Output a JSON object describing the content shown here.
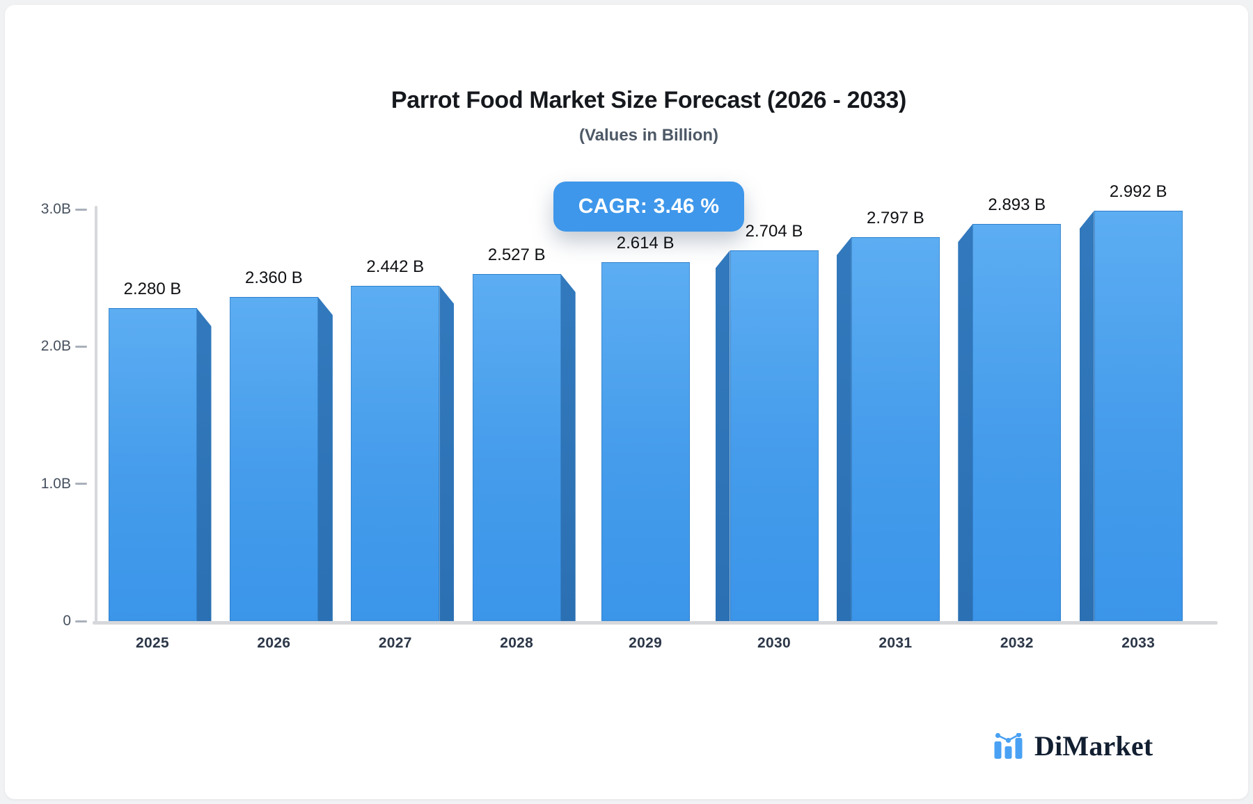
{
  "title": "Parrot Food Market Size Forecast (2026 - 2033)",
  "subtitle": "(Values in Billion)",
  "badge": {
    "label": "CAGR: 3.46 %"
  },
  "brand": {
    "name": "DiMarket"
  },
  "chart_data": {
    "type": "bar",
    "title": "Parrot Food Market Size Forecast (2026 - 2033)",
    "subtitle": "(Values in Billion)",
    "cagr_percent": 3.46,
    "categories": [
      "2025",
      "2026",
      "2027",
      "2028",
      "2029",
      "2030",
      "2031",
      "2032",
      "2033"
    ],
    "values": [
      2.28,
      2.36,
      2.442,
      2.527,
      2.614,
      2.704,
      2.797,
      2.893,
      2.992
    ],
    "value_labels": [
      "2.280 B",
      "2.360 B",
      "2.442 B",
      "2.527 B",
      "2.614 B",
      "2.704 B",
      "2.797 B",
      "2.893 B",
      "2.992 B"
    ],
    "xlabel": "",
    "ylabel": "",
    "ylim": [
      0,
      3.0
    ],
    "yticks": [
      {
        "label": "3.0B",
        "value": 3.0
      },
      {
        "label": "2.0B",
        "value": 2.0
      },
      {
        "label": "1.0B",
        "value": 1.0
      },
      {
        "label": "0",
        "value": 0
      }
    ],
    "grid": false,
    "legend": "none",
    "colors": {
      "bar_top": "#5cadf2",
      "bar_bottom": "#3b95e9",
      "bar_side": "#2c73b5",
      "accent": "#3e97ea",
      "axis": "#d6d8dc",
      "label_text": "#0e1013"
    }
  }
}
